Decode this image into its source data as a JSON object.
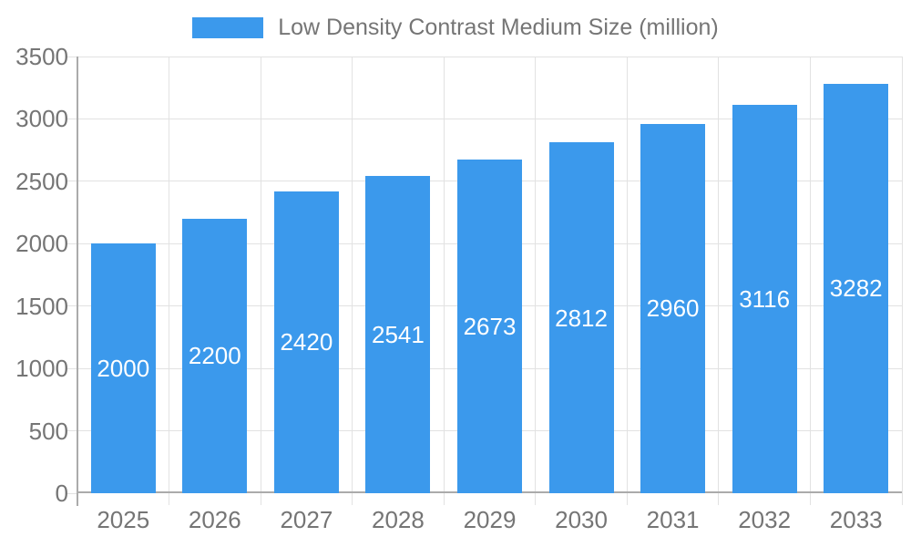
{
  "legend": {
    "label": "Low Density Contrast Medium Size (million)"
  },
  "colors": {
    "bar": "#3B99EC",
    "grid": "#E2E2E2",
    "axis": "#ABABAB",
    "tick_label": "#757575",
    "bar_label": "#FFFFFF",
    "background": "#FFFFFF"
  },
  "chart_data": {
    "type": "bar",
    "title": "",
    "categories": [
      "2025",
      "2026",
      "2027",
      "2028",
      "2029",
      "2030",
      "2031",
      "2032",
      "2033"
    ],
    "series": [
      {
        "name": "Low Density Contrast Medium Size (million)",
        "values": [
          2000,
          2200,
          2420,
          2541,
          2673,
          2812,
          2960,
          3116,
          3282
        ]
      }
    ],
    "bar_value_labels": [
      "2000",
      "2200",
      "2420",
      "2541",
      "2673",
      "2812",
      "2960",
      "3116",
      "3282"
    ],
    "xlabel": "",
    "ylabel": "",
    "ylim": [
      0,
      3500
    ],
    "yticks": [
      0,
      500,
      1000,
      1500,
      2000,
      2500,
      3000,
      3500
    ],
    "grid": true,
    "legend_position": "top-center",
    "value_label_position": "center-of-bar"
  }
}
